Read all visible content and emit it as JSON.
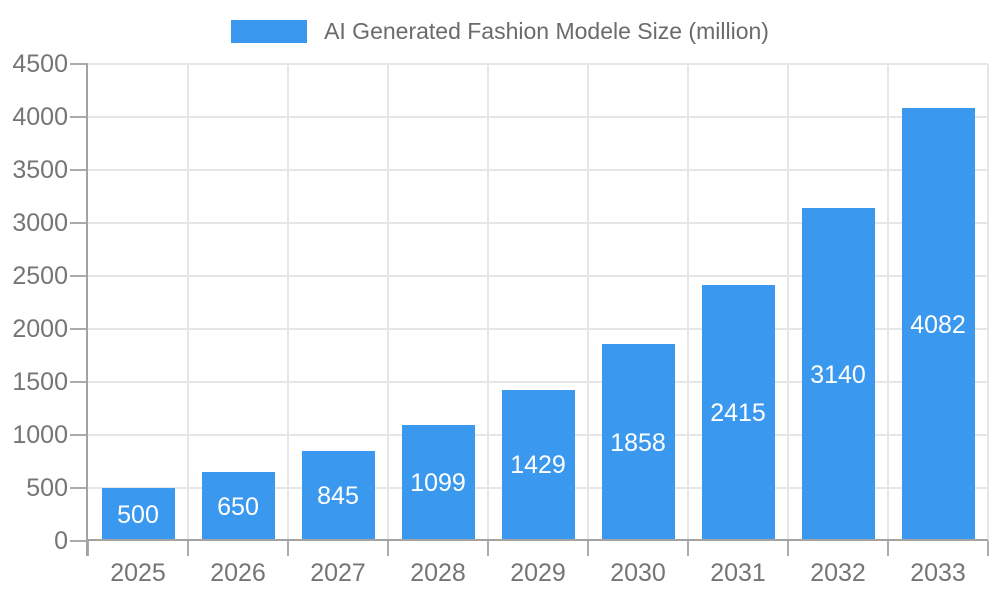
{
  "chart_data": {
    "type": "bar",
    "title": "AI Generated Fashion Modele Size (million)",
    "legend": {
      "position": "top-center",
      "items": [
        {
          "label": "AI Generated Fashion Modele Size (million)",
          "color": "#3A99EF"
        }
      ]
    },
    "categories": [
      "2025",
      "2026",
      "2027",
      "2028",
      "2029",
      "2030",
      "2031",
      "2032",
      "2033"
    ],
    "series": [
      {
        "name": "AI Generated Fashion Modele Size (million)",
        "values": [
          500,
          650,
          845,
          1099,
          1429,
          1858,
          2415,
          3140,
          4082
        ]
      }
    ],
    "xlabel": "",
    "ylabel": "",
    "ylim": [
      0,
      4500
    ],
    "yticks": [
      0,
      500,
      1000,
      1500,
      2000,
      2500,
      3000,
      3500,
      4000,
      4500
    ],
    "grid": true,
    "value_labels_shown": true,
    "colors": {
      "bar": "#3A99EF",
      "grid_line": "#e6e6e6",
      "axis_line": "#a2a2a2",
      "tick_line": "#ababab",
      "axis_text": "#757575",
      "legend_text": "#6b6b6b",
      "value_label_text": "#ffffff",
      "background": "#ffffff"
    }
  }
}
